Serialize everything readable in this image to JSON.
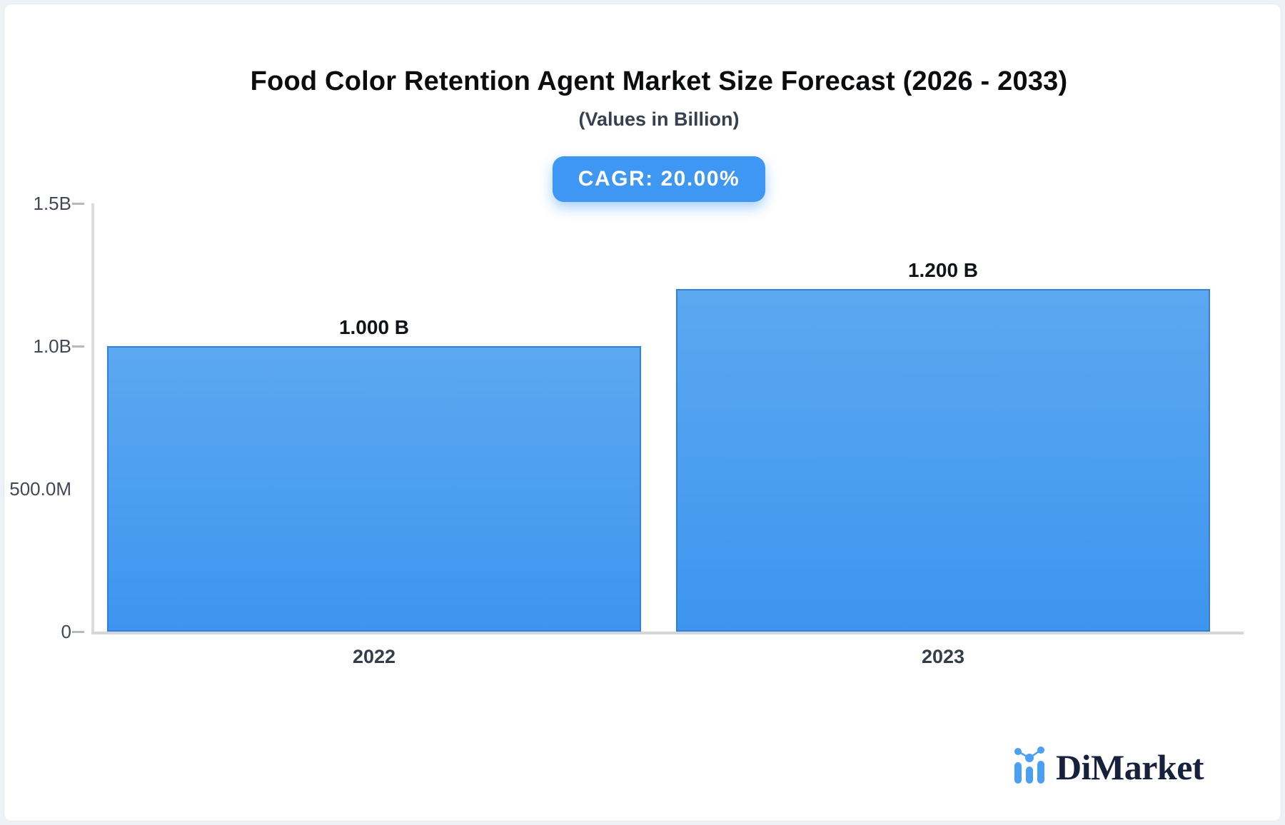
{
  "chart": {
    "title": "Food Color Retention Agent Market Size Forecast (2026 - 2033)",
    "subtitle": "(Values in Billion)",
    "cagr_label": "CAGR: 20.00%"
  },
  "chart_data": {
    "type": "bar",
    "title": "Food Color Retention Agent Market Size Forecast (2026 - 2033)",
    "subtitle": "(Values in Billion)",
    "cagr_pct": 20.0,
    "categories": [
      "2022",
      "2023"
    ],
    "values_billion": [
      1.0,
      1.2
    ],
    "value_labels": [
      "1.000 B",
      "1.200 B"
    ],
    "xlabel": "",
    "ylabel": "",
    "ylim_billion": [
      0,
      1.5
    ],
    "yticks": [
      {
        "label": "1.5B",
        "value": 1.5,
        "dash": true
      },
      {
        "label": "1.0B",
        "value": 1.0,
        "dash": true
      },
      {
        "label": "500.0M",
        "value": 0.5,
        "dash": false
      },
      {
        "label": "0",
        "value": 0.0,
        "dash": true
      }
    ],
    "grid": false,
    "legend": false
  },
  "branding": {
    "name": "DiMarket",
    "logo_icon": "mini-bar-chart-with-dots"
  },
  "colors": {
    "badge_blue": "#3E97F2",
    "bar_top": "#5CA8F1",
    "bar_bottom": "#3D95EF",
    "bar_border": "#3180D5",
    "axis_gray": "#D6DAE0",
    "logo_navy": "#16213C",
    "logo_blue": "#4AA0F5"
  }
}
